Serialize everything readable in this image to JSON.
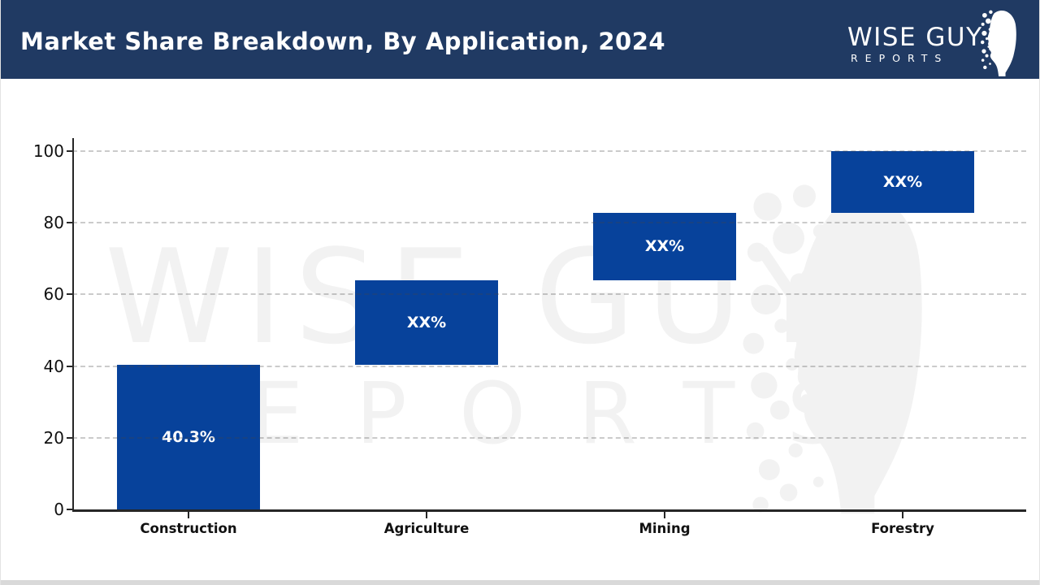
{
  "header": {
    "title": "Market Share Breakdown, By Application, 2024",
    "logo": {
      "line1": "WISE GUY",
      "line2": "REPORTS"
    },
    "bg_color": "#203a63"
  },
  "watermark": {
    "line1": "WISE GUY",
    "line2": "REPORTS"
  },
  "chart_data": {
    "type": "bar",
    "subtype": "waterfall",
    "title": "Market Share Breakdown, By Application, 2024",
    "categories": [
      "Construction",
      "Agriculture",
      "Mining",
      "Forestry"
    ],
    "series": [
      {
        "name": "Market share (%)",
        "segments": [
          {
            "category": "Construction",
            "start": 0,
            "end": 40.3,
            "value": 40.3,
            "label": "40.3%"
          },
          {
            "category": "Agriculture",
            "start": 40.3,
            "end": 64.0,
            "value": 23.7,
            "label": "XX%"
          },
          {
            "category": "Mining",
            "start": 64.0,
            "end": 82.8,
            "value": 18.8,
            "label": "XX%"
          },
          {
            "category": "Forestry",
            "start": 82.8,
            "end": 100.0,
            "value": 17.2,
            "label": "XX%"
          }
        ]
      }
    ],
    "xlabel": "",
    "ylabel": "",
    "ylim": [
      0,
      100
    ],
    "yticks": [
      0,
      20,
      40,
      60,
      80,
      100
    ],
    "grid": "horizontal-dashed",
    "legend": "none",
    "bar_color": "#07429b",
    "label_color": "#ffffff"
  }
}
